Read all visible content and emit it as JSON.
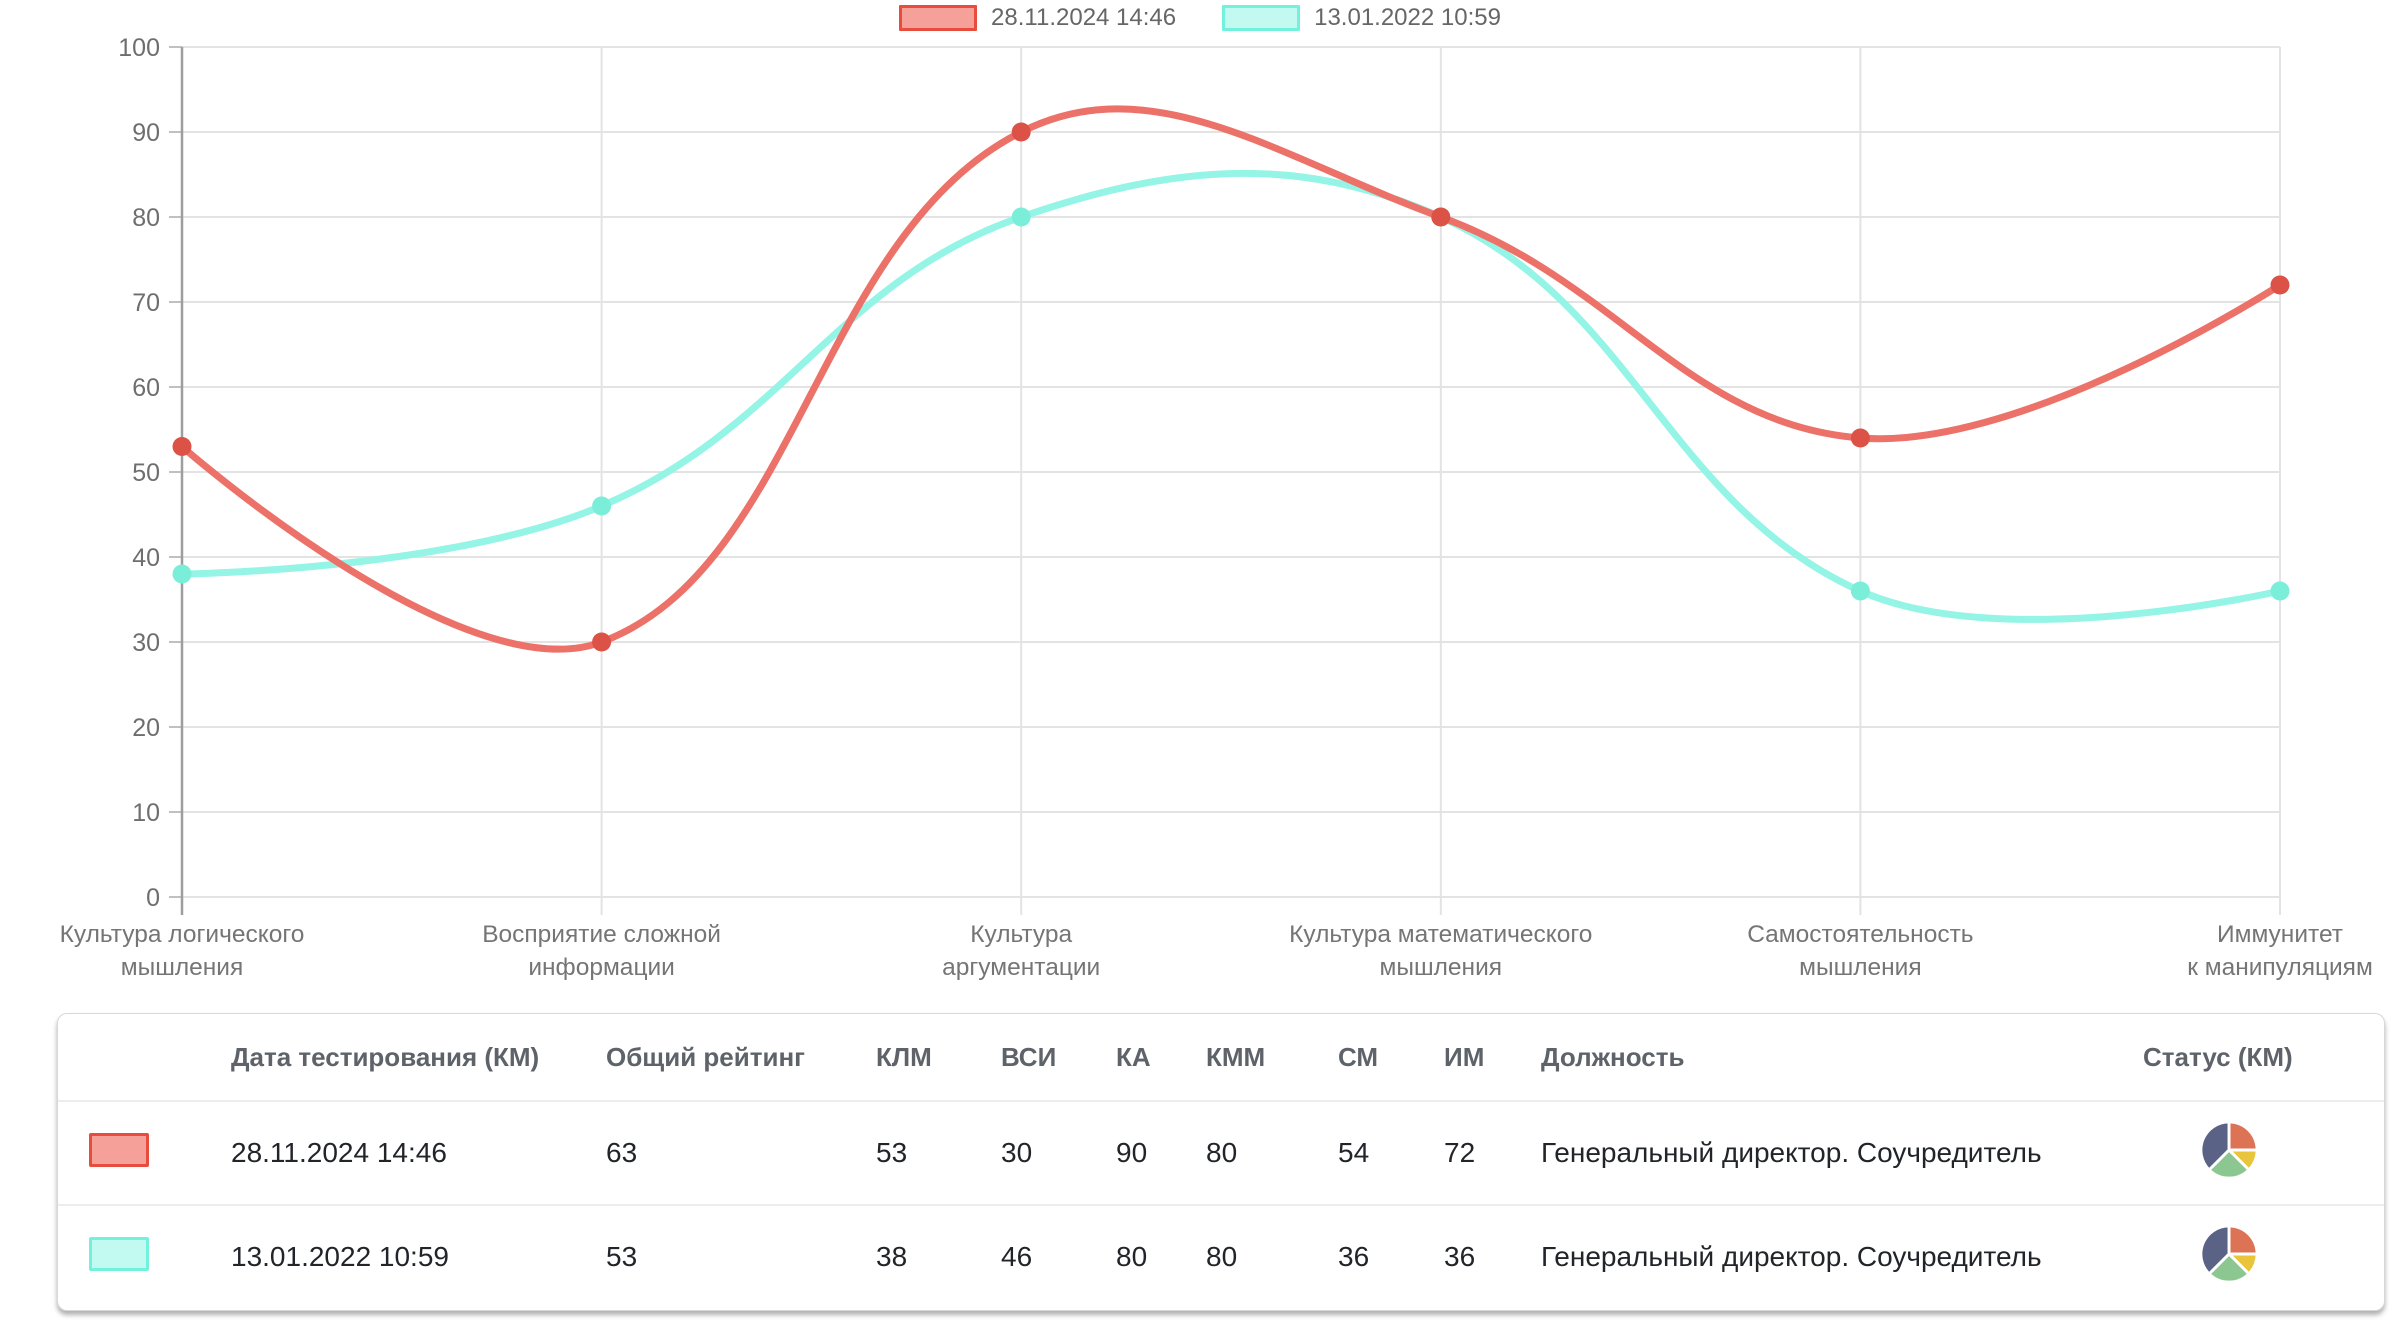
{
  "legend": {
    "items": [
      {
        "label": "28.11.2024 14:46"
      },
      {
        "label": "13.01.2022 10:59"
      }
    ]
  },
  "chart_data": {
    "type": "line",
    "categories": [
      "Культура логического\nмышления",
      "Восприятие сложной\nинформации",
      "Культура\nаргументации",
      "Культура математического\nмышления",
      "Самостоятельность\nмышления",
      "Иммунитет\nк манипуляциям"
    ],
    "series": [
      {
        "name": "28.11.2024 14:46",
        "values": [
          53,
          30,
          90,
          80,
          54,
          72
        ],
        "line_color": "#ec7168",
        "marker_color": "#dc5246",
        "swatch_fill": "#f5a19a",
        "swatch_border": "#e74c3c"
      },
      {
        "name": "13.01.2022 10:59",
        "values": [
          38,
          46,
          80,
          80,
          36,
          36
        ],
        "line_color": "#94f4e5",
        "marker_color": "#7beed9",
        "swatch_fill": "#c2f9f0",
        "swatch_border": "#72f1dd"
      }
    ],
    "ylim": [
      0,
      100
    ],
    "yticks": [
      0,
      10,
      20,
      30,
      40,
      50,
      60,
      70,
      80,
      90,
      100
    ],
    "grid": true,
    "legend_position": "top",
    "line_tension": 0.4,
    "title": "",
    "xlabel": "",
    "ylabel": ""
  },
  "table": {
    "headers": {
      "date": "Дата тестирования (КМ)",
      "overall": "Общий рейтинг",
      "klm": "КЛМ",
      "vsi": "ВСИ",
      "ka": "КА",
      "kmm": "КММ",
      "sm": "СМ",
      "im": "ИМ",
      "position": "Должность",
      "status": "Статус (КМ)"
    },
    "rows": [
      {
        "date": "28.11.2024 14:46",
        "overall": "63",
        "klm": "53",
        "vsi": "30",
        "ka": "90",
        "kmm": "80",
        "sm": "54",
        "im": "72",
        "position": "Генеральный директор. Соучредитель"
      },
      {
        "date": "13.01.2022 10:59",
        "overall": "53",
        "klm": "38",
        "vsi": "46",
        "ka": "80",
        "kmm": "80",
        "sm": "36",
        "im": "36",
        "position": "Генеральный директор. Соучредитель"
      }
    ]
  },
  "status_pie": {
    "colors": [
      "#dc7355",
      "#e9c53d",
      "#8cc791",
      "#5a6385"
    ],
    "segments_deg": [
      [
        0,
        90
      ],
      [
        90,
        135
      ],
      [
        135,
        225
      ],
      [
        225,
        360
      ]
    ]
  }
}
